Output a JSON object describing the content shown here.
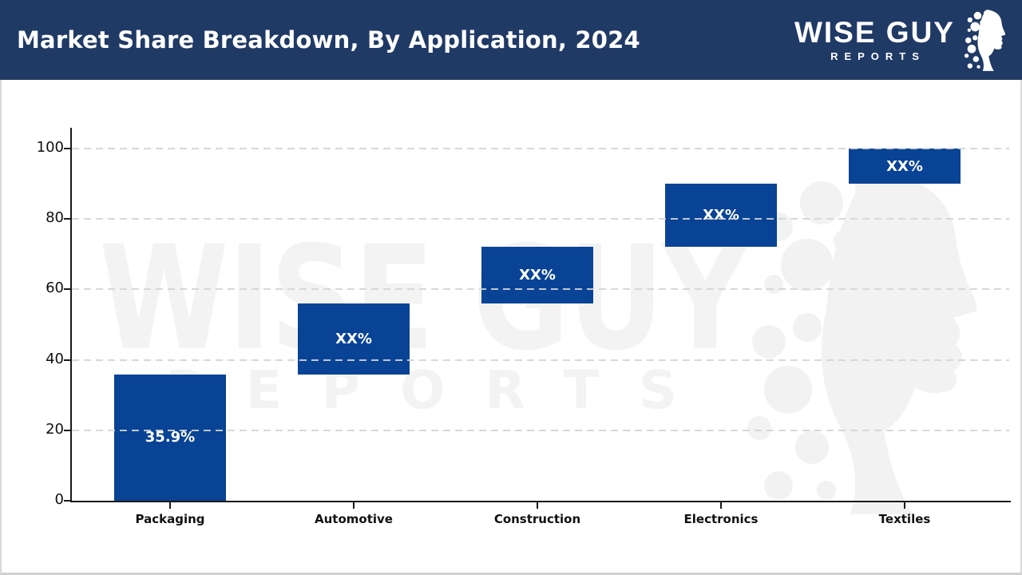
{
  "header": {
    "logo": {
      "line1": "WISE GUY",
      "line2": "REPORTS"
    }
  },
  "watermark": {
    "line1": "WISE GUY",
    "line2": "REPORTS"
  },
  "chart_data": {
    "type": "bar",
    "subtype": "waterfall",
    "title": "Market Share Breakdown, By Application, 2024",
    "categories": [
      "Packaging",
      "Automotive",
      "Construction",
      "Electronics",
      "Textiles"
    ],
    "segments": [
      {
        "category": "Packaging",
        "start": 0,
        "end": 35.9,
        "label": "35.9%"
      },
      {
        "category": "Automotive",
        "start": 35.9,
        "end": 56,
        "label": "XX%"
      },
      {
        "category": "Construction",
        "start": 56,
        "end": 72,
        "label": "XX%"
      },
      {
        "category": "Electronics",
        "start": 72,
        "end": 90,
        "label": "XX%"
      },
      {
        "category": "Textiles",
        "start": 90,
        "end": 100,
        "label": "XX%"
      }
    ],
    "y_ticks": [
      0,
      20,
      40,
      60,
      80,
      100
    ],
    "y_tick_labels": [
      "0",
      "20",
      "40",
      "60",
      "80",
      "100"
    ],
    "ylim": [
      0,
      105
    ],
    "xlabel": "",
    "ylabel": "",
    "grid": "horizontal-dashed",
    "legend": "none",
    "bar_color": "#084395",
    "label_color": "#ffffff"
  },
  "colors": {
    "header_bg": "#203a66",
    "bar": "#084395",
    "axis": "#1a1a1a",
    "gridline": "#d4d4d4",
    "watermark": "#f3f3f3",
    "panel_border": "#d9d9d9"
  }
}
